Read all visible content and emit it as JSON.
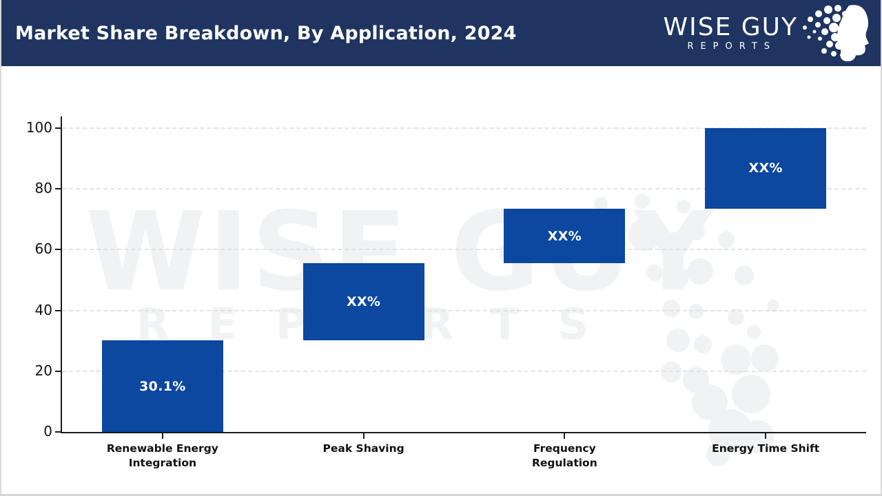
{
  "header": {
    "title": "Market Share Breakdown, By Application, 2024",
    "bg_color": "#1f3460",
    "logo": {
      "line1": "WISE GUY",
      "line2": "REPORTS"
    }
  },
  "watermark": {
    "line1": "WISE GUY",
    "line2": "REPORTS"
  },
  "chart_data": {
    "type": "bar",
    "subtype": "waterfall",
    "title": "Market Share Breakdown, By Application, 2024",
    "categories": [
      "Renewable Energy\nIntegration",
      "Peak Shaving",
      "Frequency\nRegulation",
      "Energy Time Shift"
    ],
    "bars": [
      {
        "category": "Renewable Energy Integration",
        "label": "30.1%",
        "start": 0,
        "end": 30.1
      },
      {
        "category": "Peak Shaving",
        "label": "XX%",
        "start": 30.1,
        "end": 55.5
      },
      {
        "category": "Frequency Regulation",
        "label": "XX%",
        "start": 55.5,
        "end": 73.5
      },
      {
        "category": "Energy Time Shift",
        "label": "XX%",
        "start": 73.5,
        "end": 100
      }
    ],
    "xlabel": "",
    "ylabel": "",
    "ylim": [
      0,
      100
    ],
    "y_ticks": [
      0,
      20,
      40,
      60,
      80,
      100
    ],
    "grid": "horizontal-dashed",
    "legend": "none",
    "bar_color": "#0c47a0",
    "label_color": "#ffffff"
  }
}
